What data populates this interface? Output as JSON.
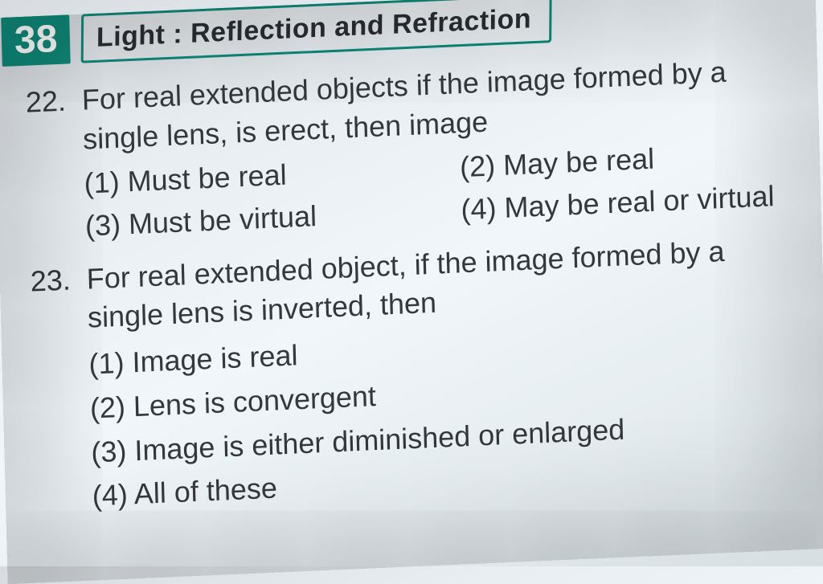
{
  "chapter": {
    "number": "38",
    "title": "Light : Reflection and Refraction"
  },
  "questions": [
    {
      "number": "22.",
      "stem": "For real extended objects if the image formed by a single lens, is erect, then image",
      "layout": "2col",
      "options": [
        "(1) Must be real",
        "(2) May be real",
        "(3) Must be virtual",
        "(4) May be real or virtual"
      ]
    },
    {
      "number": "23.",
      "stem": "For real extended object, if the image formed by a single lens is inverted, then",
      "layout": "1col",
      "options": [
        "(1) Image is real",
        "(2) Lens is convergent",
        "(3) Image is either diminished or enlarged",
        "(4) All of these"
      ]
    }
  ],
  "colors": {
    "accent": "#0f8a7a",
    "text": "#34383c"
  }
}
